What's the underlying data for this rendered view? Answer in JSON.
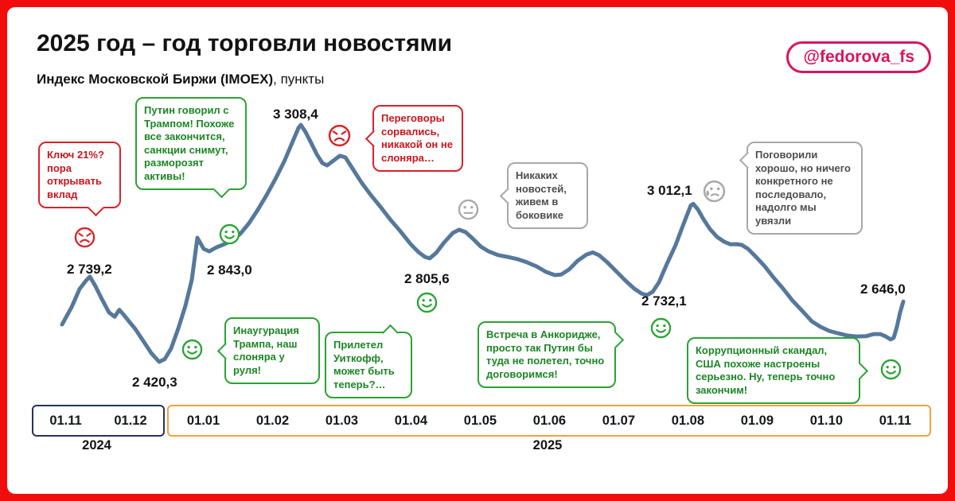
{
  "header": {
    "title": "2025 год – год торговли новостями",
    "subtitle_bold": "Индекс Московской Биржи (IMOEX)",
    "subtitle_rest": ", пункты",
    "handle": "@fedorova_fs"
  },
  "colors": {
    "frame": "#f20d0d",
    "pink": "#d6155f",
    "line": "#56789b",
    "green": "#2aa333",
    "greentext": "#1b8624",
    "red": "#d8232a",
    "redtext": "#c8161d",
    "gray": "#a8a8a8",
    "graytext": "#4d4d4d",
    "navy": "#27335e",
    "orange": "#f2a33c",
    "label": "#121212"
  },
  "icons": {
    "angry": "angry-face",
    "smile": "smiley-face",
    "neutral": "neutral-face",
    "tear": "sad-sweat-face"
  },
  "value_labels": {
    "nov24_peak": "2 739,2",
    "dec24_low": "2 420,3",
    "jan25": "2 843,0",
    "feb25_peak": "3 308,4",
    "apr25_low": "2 805,6",
    "aug25_peak": "3 012,1",
    "aug25_low": "2 732,1",
    "nov25_last": "2 646,0"
  },
  "callouts": {
    "key_rate": "Ключ 21%? пора открывать вклад",
    "putin_trump": "Путин говорил с Трампом! Похоже все закончится, санкции снимут, разморозят активы!",
    "talks_failed": "Переговоры сорвались, никакой он не слоняра…",
    "no_news": "Никаких новостей, живем в боковике",
    "talked_well": "Поговорили хорошо, но ничего конкретного не последовало, надолго мы увязли",
    "inauguration": "Инаугурация Трампа, наш слоняра у руля!",
    "witkoff": "Прилетел Уиткофф, может быть теперь?…",
    "anchorage": "Встреча в Анкоридже, просто так Путин бы туда не полетел, точно договоримся!",
    "corruption": "Коррупционный скандал, США похоже настроены серьезно. Ну, теперь точно закончим!"
  },
  "axis": {
    "group_2024": {
      "year": "2024",
      "ticks": [
        "01.11",
        "01.12"
      ]
    },
    "group_2025": {
      "year": "2025",
      "ticks": [
        "01.01",
        "01.02",
        "01.03",
        "01.04",
        "01.05",
        "01.06",
        "01.07",
        "01.08",
        "01.09",
        "01.10",
        "01.11"
      ]
    }
  },
  "chart_data": {
    "type": "line",
    "title": "Индекс Московской Биржи (IMOEX), пункты",
    "series_name": "IMOEX",
    "grid": false,
    "legend": false,
    "ylim": [
      2400,
      3360
    ],
    "x_groups": [
      {
        "year": "2024",
        "ticks": [
          "01.11",
          "01.12"
        ]
      },
      {
        "year": "2025",
        "ticks": [
          "01.01",
          "01.02",
          "01.03",
          "01.04",
          "01.05",
          "01.06",
          "01.07",
          "01.08",
          "01.09",
          "01.10",
          "01.11"
        ]
      }
    ],
    "key_points": [
      {
        "date": "11.2024",
        "value": 2739.2,
        "label": "2 739,2"
      },
      {
        "date": "12.2024",
        "value": 2420.3,
        "label": "2 420,3"
      },
      {
        "date": "01.2025",
        "value": 2843.0,
        "label": "2 843,0"
      },
      {
        "date": "02.2025",
        "value": 3308.4,
        "label": "3 308,4"
      },
      {
        "date": "04.2025",
        "value": 2805.6,
        "label": "2 805,6"
      },
      {
        "date": "08.2025",
        "value": 3012.1,
        "label": "3 012,1"
      },
      {
        "date": "08.2025",
        "value": 2732.1,
        "label": "2 732,1"
      },
      {
        "date": "11.2025",
        "value": 2646.0,
        "label": "2 646,0"
      }
    ],
    "points": [
      [
        78,
        2560
      ],
      [
        90,
        2625
      ],
      [
        100,
        2693
      ],
      [
        108,
        2724
      ],
      [
        113,
        2739
      ],
      [
        120,
        2703
      ],
      [
        128,
        2655
      ],
      [
        137,
        2605
      ],
      [
        144,
        2589
      ],
      [
        150,
        2615
      ],
      [
        155,
        2598
      ],
      [
        162,
        2572
      ],
      [
        170,
        2543
      ],
      [
        180,
        2498
      ],
      [
        190,
        2453
      ],
      [
        200,
        2420
      ],
      [
        207,
        2430
      ],
      [
        215,
        2470
      ],
      [
        224,
        2545
      ],
      [
        233,
        2630
      ],
      [
        241,
        2727
      ],
      [
        248,
        2885
      ],
      [
        256,
        2843
      ],
      [
        263,
        2834
      ],
      [
        272,
        2849
      ],
      [
        282,
        2861
      ],
      [
        292,
        2876
      ],
      [
        302,
        2900
      ],
      [
        313,
        2940
      ],
      [
        324,
        2990
      ],
      [
        335,
        3045
      ],
      [
        346,
        3105
      ],
      [
        357,
        3170
      ],
      [
        367,
        3240
      ],
      [
        375,
        3296
      ],
      [
        378,
        3308
      ],
      [
        384,
        3281
      ],
      [
        391,
        3240
      ],
      [
        398,
        3198
      ],
      [
        405,
        3165
      ],
      [
        411,
        3156
      ],
      [
        419,
        3174
      ],
      [
        427,
        3192
      ],
      [
        434,
        3186
      ],
      [
        443,
        3144
      ],
      [
        454,
        3093
      ],
      [
        466,
        3045
      ],
      [
        478,
        3001
      ],
      [
        491,
        2951
      ],
      [
        504,
        2906
      ],
      [
        516,
        2861
      ],
      [
        526,
        2831
      ],
      [
        534,
        2813
      ],
      [
        540,
        2808
      ],
      [
        548,
        2828
      ],
      [
        558,
        2867
      ],
      [
        569,
        2903
      ],
      [
        577,
        2915
      ],
      [
        585,
        2906
      ],
      [
        594,
        2882
      ],
      [
        604,
        2852
      ],
      [
        614,
        2834
      ],
      [
        626,
        2820
      ],
      [
        638,
        2813
      ],
      [
        650,
        2805
      ],
      [
        662,
        2793
      ],
      [
        674,
        2778
      ],
      [
        686,
        2757
      ],
      [
        697,
        2745
      ],
      [
        705,
        2747
      ],
      [
        715,
        2766
      ],
      [
        726,
        2799
      ],
      [
        737,
        2822
      ],
      [
        745,
        2830
      ],
      [
        753,
        2819
      ],
      [
        763,
        2793
      ],
      [
        774,
        2760
      ],
      [
        786,
        2724
      ],
      [
        797,
        2694
      ],
      [
        806,
        2676
      ],
      [
        813,
        2670
      ],
      [
        820,
        2682
      ],
      [
        828,
        2718
      ],
      [
        838,
        2787
      ],
      [
        849,
        2858
      ],
      [
        860,
        2945
      ],
      [
        868,
        3006
      ],
      [
        871,
        3012
      ],
      [
        877,
        2991
      ],
      [
        884,
        2954
      ],
      [
        892,
        2918
      ],
      [
        901,
        2888
      ],
      [
        910,
        2870
      ],
      [
        918,
        2860
      ],
      [
        925,
        2861
      ],
      [
        932,
        2858
      ],
      [
        940,
        2843
      ],
      [
        950,
        2813
      ],
      [
        961,
        2778
      ],
      [
        972,
        2736
      ],
      [
        984,
        2694
      ],
      [
        996,
        2649
      ],
      [
        1008,
        2611
      ],
      [
        1020,
        2572
      ],
      [
        1031,
        2551
      ],
      [
        1042,
        2536
      ],
      [
        1053,
        2527
      ],
      [
        1064,
        2519
      ],
      [
        1076,
        2515
      ],
      [
        1088,
        2516
      ],
      [
        1098,
        2524
      ],
      [
        1106,
        2524
      ],
      [
        1113,
        2515
      ],
      [
        1119,
        2504
      ],
      [
        1123,
        2510
      ],
      [
        1127,
        2551
      ],
      [
        1131,
        2605
      ],
      [
        1135,
        2646
      ]
    ]
  }
}
